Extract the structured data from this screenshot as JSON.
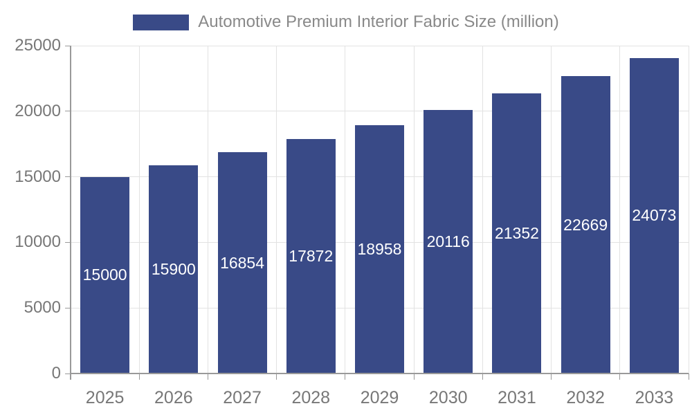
{
  "chart_data": {
    "type": "bar",
    "title": "Automotive Premium Interior Fabric Size (million)",
    "legend": {
      "label": "Automotive Premium Interior Fabric Size (million)",
      "position": "top"
    },
    "categories": [
      "2025",
      "2026",
      "2027",
      "2028",
      "2029",
      "2030",
      "2031",
      "2032",
      "2033"
    ],
    "series": [
      {
        "name": "Automotive Premium Interior Fabric Size (million)",
        "values": [
          15000,
          15900,
          16854,
          17872,
          18958,
          20116,
          21352,
          22669,
          24073
        ]
      }
    ],
    "value_labels": [
      15000,
      15900,
      16854,
      17872,
      18958,
      20116,
      21352,
      22669,
      24073
    ],
    "xlabel": "",
    "ylabel": "",
    "ylim": [
      0,
      25000
    ],
    "yticks": [
      0,
      5000,
      10000,
      15000,
      20000,
      25000
    ],
    "grid": true,
    "colors": {
      "bar": "#394A87",
      "legend_text": "#898989",
      "axis_label": "#777777",
      "axis_line": "#999999",
      "gridline": "#E2E2E2",
      "value_label": "#FFFFFF",
      "background": "#FFFFFF"
    }
  }
}
